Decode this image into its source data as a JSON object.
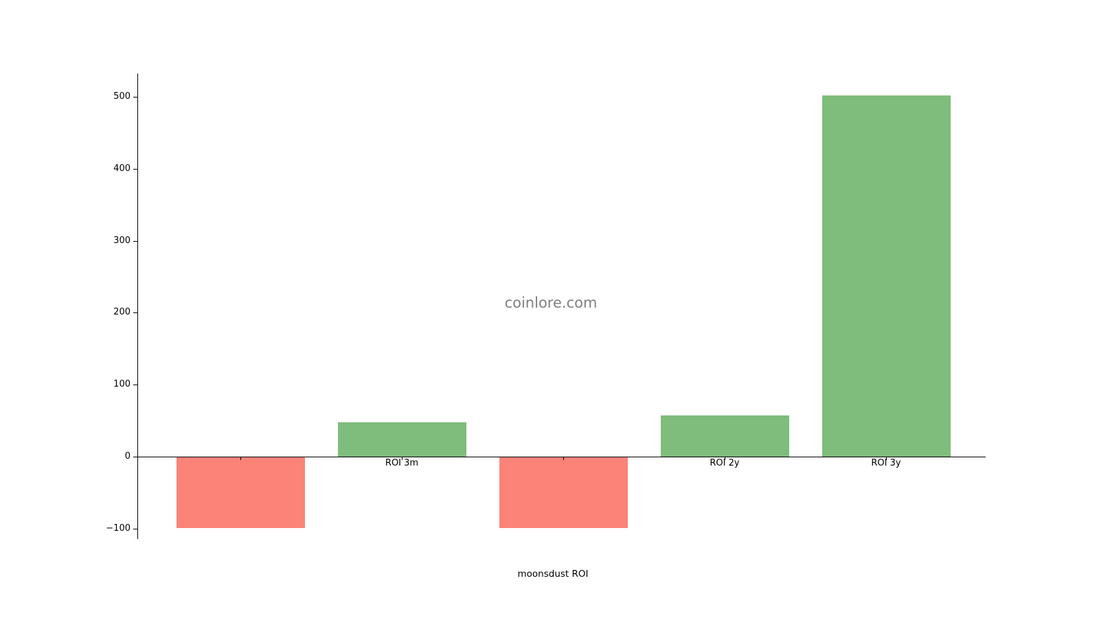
{
  "chart_data": {
    "type": "bar",
    "title": "",
    "xlabel": "moonsdust ROI",
    "ylabel": "",
    "watermark": "coinlore.com",
    "categories": [
      "",
      "ROI 3m",
      "",
      "ROI 2y",
      "ROI 3y"
    ],
    "values": [
      -98,
      48,
      -98,
      57,
      502
    ],
    "bar_colors": [
      "#fb8378",
      "#7ebd7b",
      "#fb8378",
      "#7ebd7b",
      "#7ebd7b"
    ],
    "positive_color": "#7ebd7b",
    "negative_color": "#fb8378",
    "y_ticks": [
      500,
      400,
      300,
      200,
      100,
      0,
      -100
    ],
    "ylim": [
      -115,
      535
    ],
    "grid": false,
    "legend": false,
    "axis_color": "#000000",
    "watermark_color": "#7f7f7f",
    "text_color": "#000000"
  }
}
